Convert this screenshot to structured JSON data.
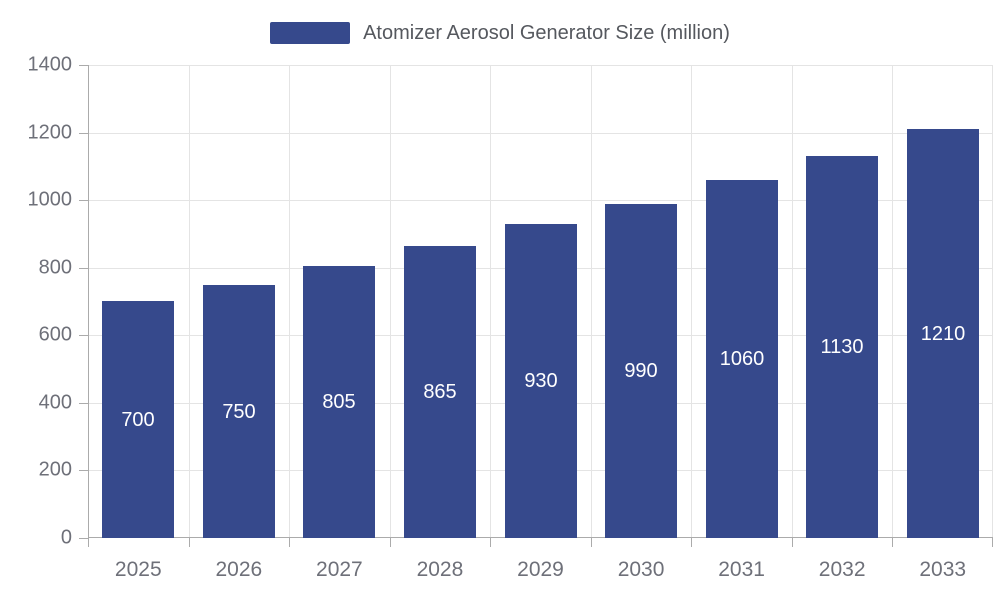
{
  "chart_data": {
    "type": "bar",
    "title": "",
    "legend_label": "Atomizer Aerosol Generator Size (million)",
    "legend_position": "top",
    "categories": [
      "2025",
      "2026",
      "2027",
      "2028",
      "2029",
      "2030",
      "2031",
      "2032",
      "2033"
    ],
    "values": [
      700,
      750,
      805,
      865,
      930,
      990,
      1060,
      1130,
      1210
    ],
    "xlabel": "",
    "ylabel": "",
    "ylim": [
      0,
      1400
    ],
    "yticks": [
      0,
      200,
      400,
      600,
      800,
      1000,
      1200,
      1400
    ],
    "grid": true,
    "colors": {
      "bar": "#36498C",
      "bar_label": "#FFFFFF",
      "axis_label": "#6E7079",
      "legend_text": "#55585E",
      "grid_line": "#E4E4E4",
      "axis_line": "#ABABAB"
    }
  }
}
